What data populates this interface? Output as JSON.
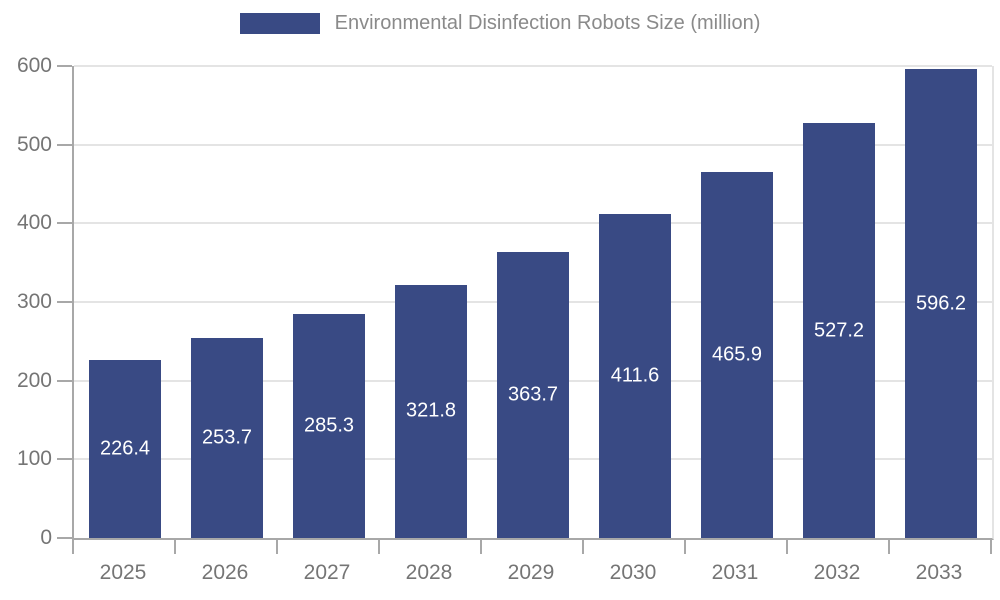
{
  "chart_data": {
    "type": "bar",
    "title": "Environmental Disinfection Robots Size (million)",
    "legend_position": "top",
    "categories": [
      "2025",
      "2026",
      "2027",
      "2028",
      "2029",
      "2030",
      "2031",
      "2032",
      "2033"
    ],
    "series": [
      {
        "name": "Environmental Disinfection Robots Size (million)",
        "values": [
          226.4,
          253.7,
          285.3,
          321.8,
          363.7,
          411.6,
          465.9,
          527.2,
          596.2
        ]
      }
    ],
    "value_labels": [
      "226.4",
      "253.7",
      "285.3",
      "321.8",
      "363.7",
      "411.6",
      "465.9",
      "527.2",
      "596.2"
    ],
    "xlabel": "",
    "ylabel": "",
    "ylim": [
      0,
      600
    ],
    "yticks": [
      0,
      100,
      200,
      300,
      400,
      500,
      600
    ],
    "grid": true,
    "colors": {
      "bar": "#394a84",
      "value_label": "#ffffff",
      "axis_line": "#a8a8a8",
      "gridline": "#e4e4e4",
      "tick_label": "#757575",
      "legend_text": "#8a8a8a",
      "background": "#ffffff"
    }
  }
}
